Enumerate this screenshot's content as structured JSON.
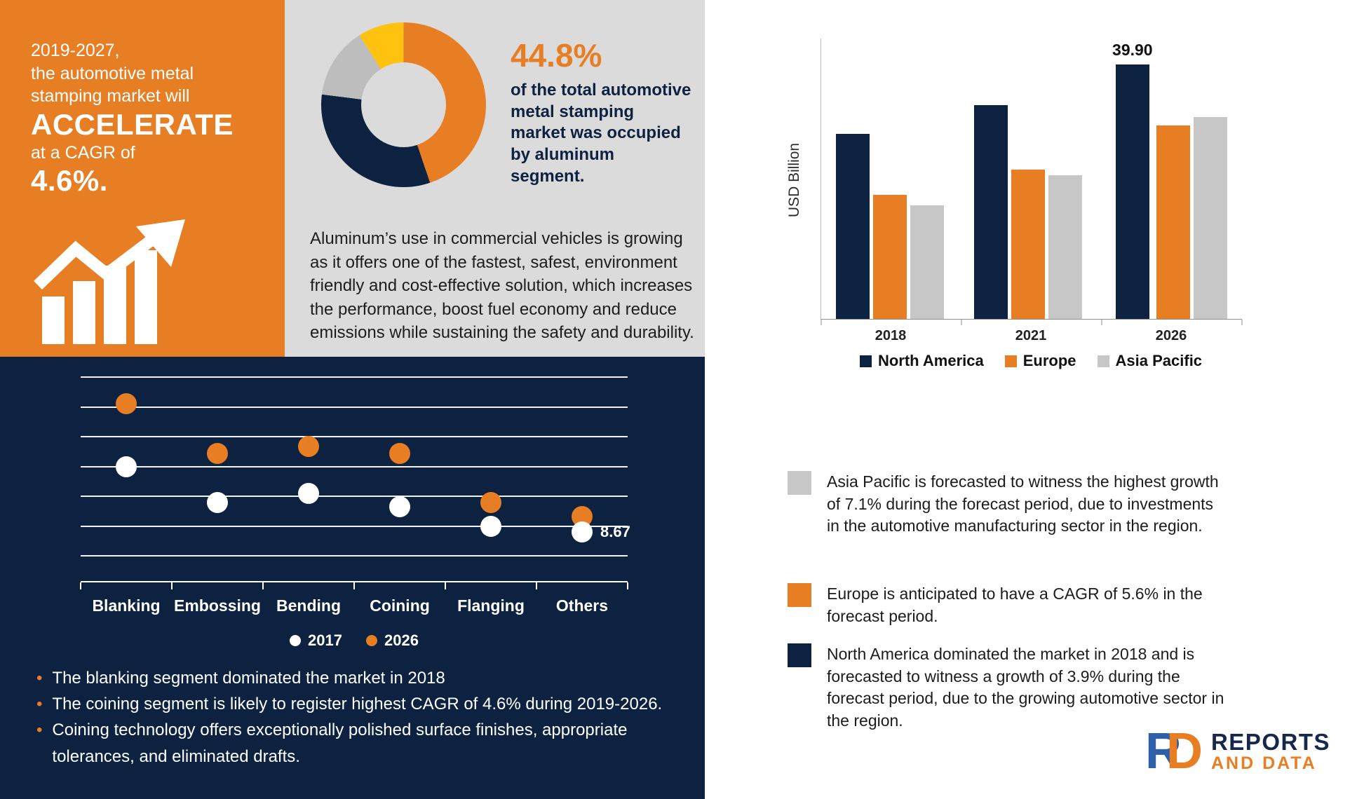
{
  "colors": {
    "orange": "#E87E24",
    "navy": "#0D2240",
    "panel_gray": "#DBDBDB",
    "bar_gray": "#C7C7C7",
    "yellow": "#FFC20E",
    "white": "#FFFFFF"
  },
  "promo_panel": {
    "period": "2019-2027,",
    "line2": "the automotive metal stamping market will",
    "accelerate": "ACCELERATE",
    "cagr_prefix": "at a CAGR of",
    "cagr_value": "4.6%."
  },
  "aluminum_panel": {
    "stat": "44.8%",
    "stat_caption": "of the total automotive metal stamping market was occupied by aluminum segment.",
    "body": "Aluminum’s use in commercial vehicles is growing as it offers one of the fastest, safest, environment friendly and cost-effective solution, which increases the performance, boost fuel economy and reduce emissions while sustaining the safety and durability."
  },
  "technology_panel": {
    "bullets": [
      "The blanking segment dominated the market in 2018",
      "The coining segment is likely to register highest CAGR of 4.6% during 2019-2026.",
      "Coining technology offers exceptionally polished surface finishes, appropriate tolerances, and eliminated drafts."
    ]
  },
  "regional_notes": [
    {
      "region": "Asia Pacific",
      "color": "#C7C7C7",
      "text": "Asia Pacific is forecasted to witness the highest growth of 7.1% during the forecast period, due to investments in the automotive manufacturing sector in the region."
    },
    {
      "region": "Europe",
      "color": "#E87E24",
      "text": "Europe is anticipated to have a CAGR of 5.6% in the forecast period."
    },
    {
      "region": "North America",
      "color": "#0D2240",
      "text": "North America dominated the market in 2018 and is forecasted to witness a growth of 3.9% during the forecast period, due to the growing automotive sector in the region."
    }
  ],
  "logo": {
    "monogram_r": "R",
    "monogram_d": "D",
    "line1": "REPORTS",
    "line2": "AND DATA"
  },
  "chart_data": [
    {
      "type": "pie",
      "variant": "donut",
      "segments": [
        {
          "name": "aluminum",
          "color": "#E87E24",
          "percent": 44.8
        },
        {
          "name": "segment-2",
          "color": "#0D2240",
          "percent": 32.2
        },
        {
          "name": "segment-3",
          "color": "#BDBDBD",
          "percent": 14.0
        },
        {
          "name": "segment-4",
          "color": "#FFC20E",
          "percent": 9.0
        }
      ]
    },
    {
      "type": "bar",
      "categories": [
        "2018",
        "2021",
        "2026"
      ],
      "series": [
        {
          "name": "North America",
          "color": "#0D2240",
          "values": [
            29.0,
            33.5,
            39.9
          ]
        },
        {
          "name": "Europe",
          "color": "#E87E24",
          "values": [
            19.5,
            23.4,
            30.4
          ]
        },
        {
          "name": "Asia Pacific",
          "color": "#C7C7C7",
          "values": [
            17.8,
            22.6,
            31.7
          ]
        }
      ],
      "ylabel": "USD Billion",
      "ylim": [
        0,
        44
      ],
      "grid": false,
      "legend_position": "bottom",
      "data_labels": [
        {
          "series": "North America",
          "category": "2026",
          "text": "39.90"
        }
      ]
    },
    {
      "type": "scatter",
      "variant": "dot-plot",
      "categories": [
        "Blanking",
        "Embossing",
        "Bending",
        "Coining",
        "Flanging",
        "Others"
      ],
      "series": [
        {
          "name": "2017",
          "color": "#FFFFFF",
          "values": [
            13.4,
            10.8,
            11.5,
            10.5,
            9.1,
            8.67
          ]
        },
        {
          "name": "2026",
          "color": "#E87E24",
          "values": [
            18.0,
            14.4,
            14.9,
            14.4,
            10.8,
            9.8
          ]
        }
      ],
      "ylim": [
        7,
        20
      ],
      "gridlines": 7,
      "grid": true,
      "legend_position": "bottom",
      "data_labels": [
        {
          "series": "2017",
          "category": "Others",
          "text": "8.67"
        }
      ]
    }
  ]
}
